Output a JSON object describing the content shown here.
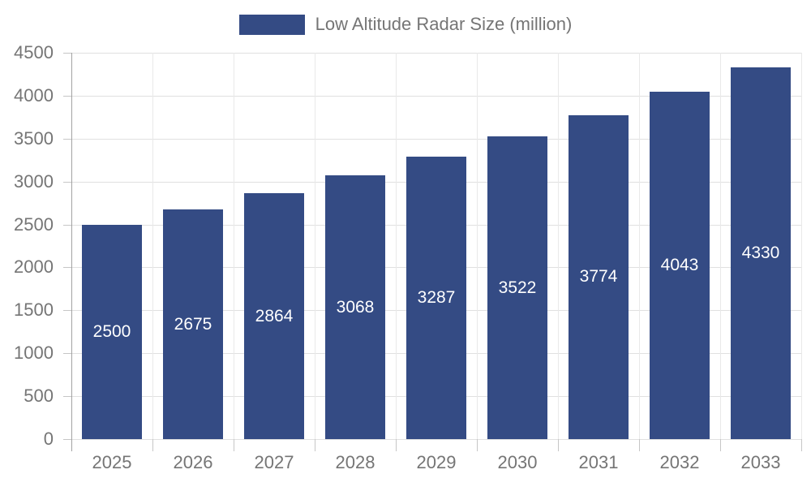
{
  "legend": {
    "label": "Low Altitude Radar Size (million)"
  },
  "colors": {
    "bar": "#344b84",
    "bar_label": "#ffffff",
    "axis_text": "#757575",
    "legend_text": "#757575",
    "gridline_horizontal": "#e0e0e0",
    "gridline_vertical": "#e9e9e9",
    "axis_line": "#a3a3a3",
    "tick": "#c6c6c6",
    "background": "#ffffff"
  },
  "chart_data": {
    "type": "bar",
    "title": "Low Altitude Radar Size (million)",
    "series": [
      {
        "name": "Low Altitude Radar Size (million)",
        "values": [
          2500,
          2675,
          2864,
          3068,
          3287,
          3522,
          3774,
          4043,
          4330
        ]
      }
    ],
    "categories": [
      "2025",
      "2026",
      "2027",
      "2028",
      "2029",
      "2030",
      "2031",
      "2032",
      "2033"
    ],
    "bar_labels_position": "inside-center",
    "xlabel": "",
    "ylabel": "",
    "ylim": [
      0,
      4500
    ],
    "ytick_step": 500,
    "yticks": [
      0,
      500,
      1000,
      1500,
      2000,
      2500,
      3000,
      3500,
      4000,
      4500
    ],
    "grid": true,
    "legend_position": "top-center"
  }
}
